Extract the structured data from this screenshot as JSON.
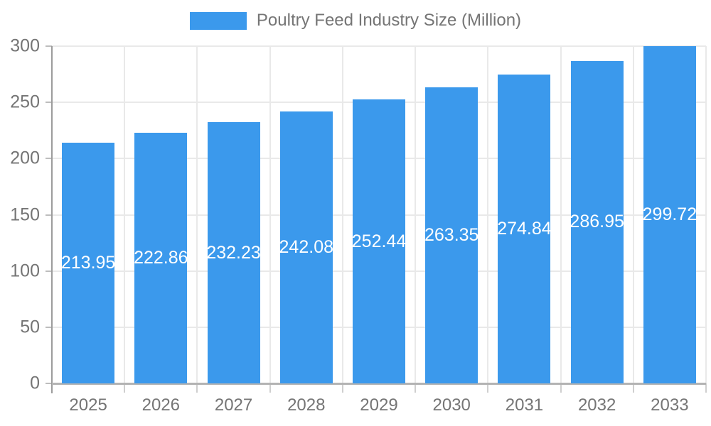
{
  "legend": {
    "label": "Poultry Feed Industry Size (Million)"
  },
  "chart_data": {
    "type": "bar",
    "title": "Poultry Feed Industry Size (Million)",
    "categories": [
      "2025",
      "2026",
      "2027",
      "2028",
      "2029",
      "2030",
      "2031",
      "2032",
      "2033"
    ],
    "values": [
      213.95,
      222.86,
      232.23,
      242.08,
      252.44,
      263.35,
      274.84,
      286.95,
      299.72
    ],
    "value_labels": [
      "213.95",
      "222.86",
      "232.23",
      "242.08",
      "252.44",
      "263.35",
      "274.84",
      "286.95",
      "299.72"
    ],
    "ytick_labels": [
      "0",
      "50",
      "100",
      "150",
      "200",
      "250",
      "300"
    ],
    "yticks": [
      0,
      50,
      100,
      150,
      200,
      250,
      300
    ],
    "ylim": [
      0,
      300
    ],
    "xlabel": "",
    "ylabel": "",
    "grid": true,
    "legend_position": "top",
    "colors": {
      "bar": "#3B99EC",
      "bar_value_text": "#ffffff",
      "axis_text": "#757575",
      "gridline": "#e9e9e9",
      "y_axis_line": "#9c9c9c",
      "x_axis_line": "#b3b3b3"
    }
  }
}
